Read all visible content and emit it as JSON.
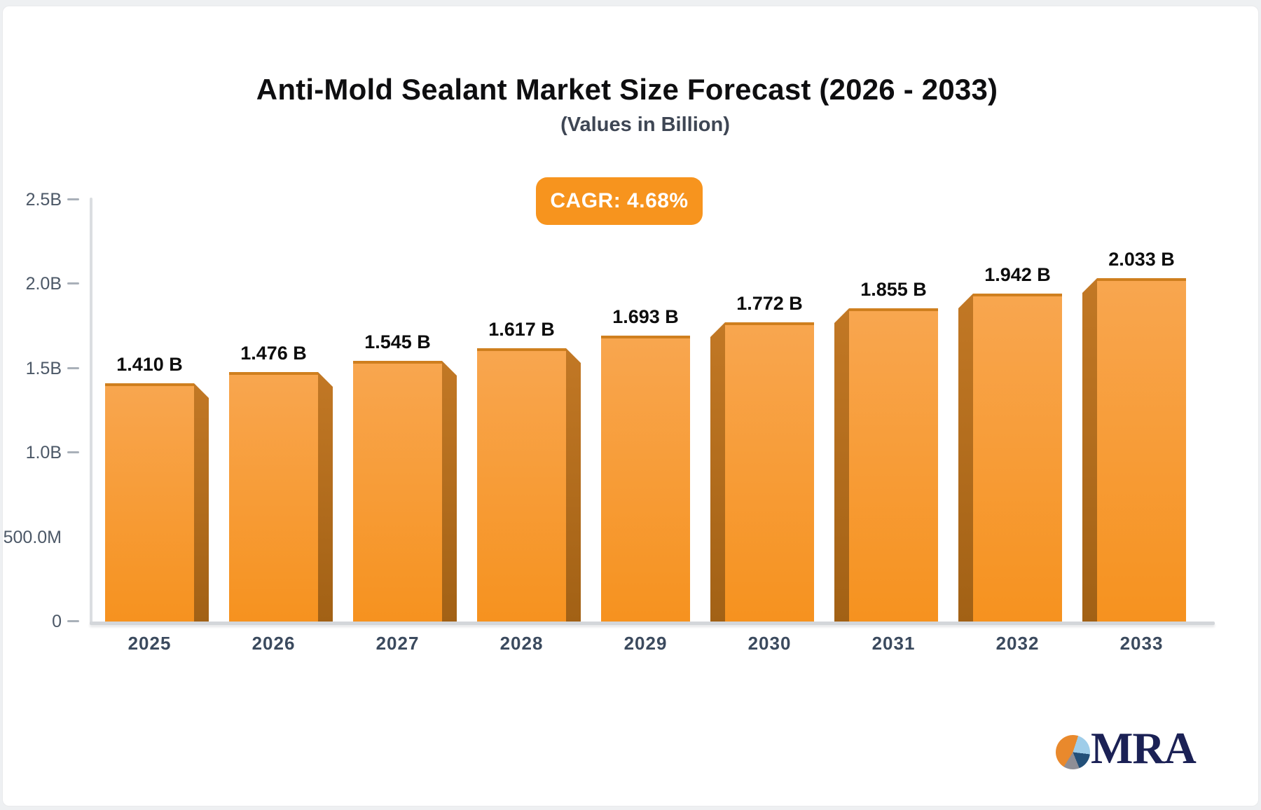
{
  "header": {
    "title": "Anti-Mold Sealant Market Size Forecast (2026 - 2033)",
    "subtitle": "(Values in Billion)",
    "badge_label": "CAGR: 4.68%"
  },
  "colors": {
    "accent_orange": "#f7941e",
    "bar_face_top": "#f8a64f",
    "bar_face_bottom": "#f6921f",
    "bar_top_edge": "#cf7f1e",
    "bar_side_top": "#c27825",
    "bar_side_bottom": "#a26115",
    "axis_line": "#d3d6da",
    "tick_text": "#4c5867",
    "logo_navy_text": "#1b2155",
    "logo_pie_orange": "#e9892c",
    "logo_pie_lightblue": "#9fcde9",
    "logo_pie_navy": "#235079",
    "logo_pie_gray": "#8e8e96"
  },
  "logo": {
    "text": "MRA"
  },
  "chart_data": {
    "type": "bar",
    "title": "Anti-Mold Sealant Market Size Forecast (2026 - 2033)",
    "subtitle": "(Values in Billion)",
    "cagr": "4.68%",
    "categories": [
      "2025",
      "2026",
      "2027",
      "2028",
      "2029",
      "2030",
      "2031",
      "2032",
      "2033"
    ],
    "values": [
      1.41,
      1.476,
      1.545,
      1.617,
      1.693,
      1.772,
      1.855,
      1.942,
      2.033
    ],
    "value_labels": [
      "1.410 B",
      "1.476 B",
      "1.545 B",
      "1.617 B",
      "1.693 B",
      "1.772 B",
      "1.855 B",
      "1.942 B",
      "2.033 B"
    ],
    "unit": "Billion",
    "ylim": [
      0,
      2.5
    ],
    "grid": false,
    "legend": false,
    "y_ticks": [
      {
        "label": "2.5B",
        "value": 2.5,
        "dash": true
      },
      {
        "label": "2.0B",
        "value": 2.0,
        "dash": true
      },
      {
        "label": "1.5B",
        "value": 1.5,
        "dash": true
      },
      {
        "label": "1.0B",
        "value": 1.0,
        "dash": true
      },
      {
        "label": "500.0M",
        "value": 0.5,
        "dash": false
      },
      {
        "label": "0",
        "value": 0,
        "dash": true
      }
    ]
  }
}
